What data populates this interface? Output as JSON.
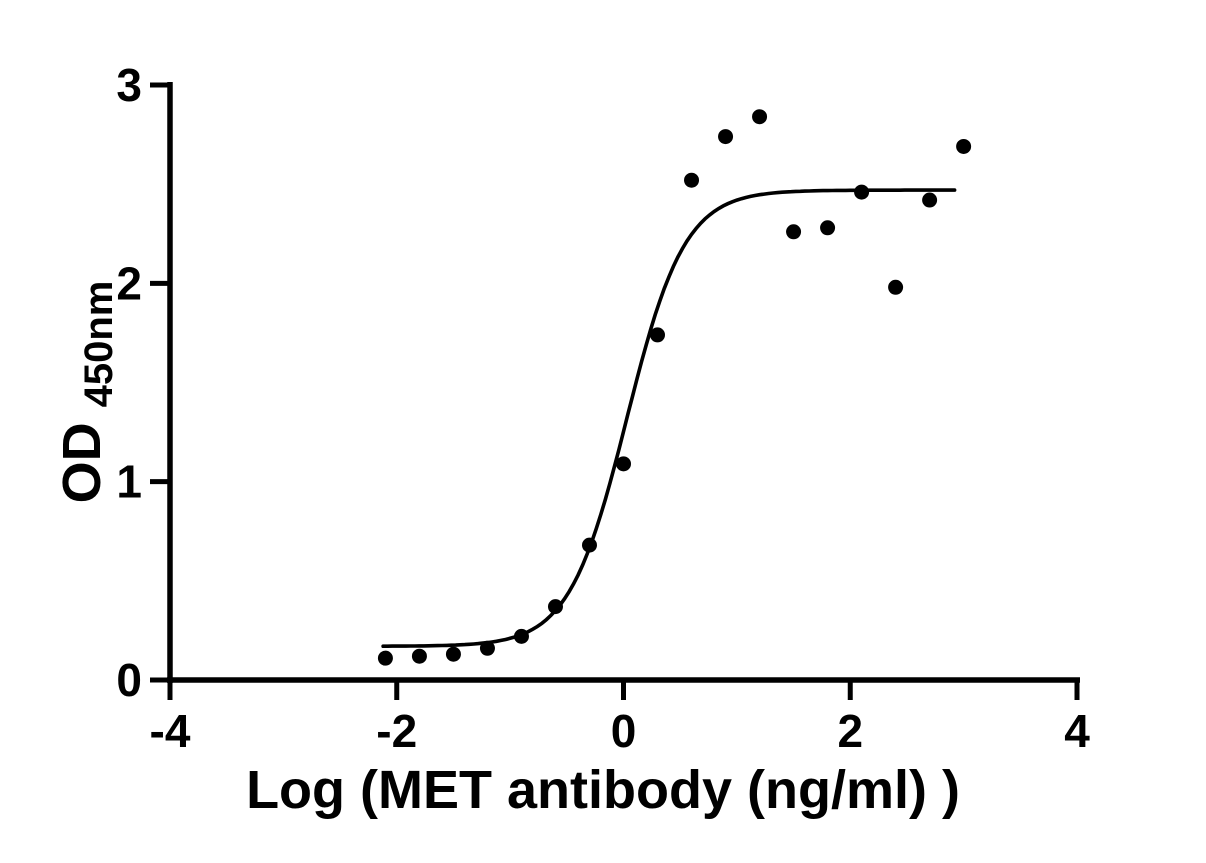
{
  "chart_data": {
    "type": "scatter",
    "title": "",
    "xlabel": "Log (MET antibody (ng/ml) )",
    "ylabel_main": "OD",
    "ylabel_sub": "450nm",
    "xlim": [
      -4,
      4
    ],
    "ylim": [
      0,
      3
    ],
    "x_ticks": [
      "-4",
      "-2",
      "0",
      "2",
      "4"
    ],
    "x_tick_values": [
      -4,
      -2,
      0,
      2,
      4
    ],
    "y_ticks": [
      "0",
      "1",
      "2",
      "3"
    ],
    "y_tick_values": [
      0,
      1,
      2,
      3
    ],
    "grid": false,
    "legend": null,
    "points": [
      {
        "x": -2.1,
        "y": 0.11
      },
      {
        "x": -1.8,
        "y": 0.12
      },
      {
        "x": -1.5,
        "y": 0.13
      },
      {
        "x": -1.2,
        "y": 0.16
      },
      {
        "x": -0.9,
        "y": 0.22
      },
      {
        "x": -0.6,
        "y": 0.37
      },
      {
        "x": -0.3,
        "y": 0.68
      },
      {
        "x": 0.0,
        "y": 1.09
      },
      {
        "x": 0.3,
        "y": 1.74
      },
      {
        "x": 0.6,
        "y": 2.52
      },
      {
        "x": 0.9,
        "y": 2.74
      },
      {
        "x": 1.2,
        "y": 2.84
      },
      {
        "x": 1.5,
        "y": 2.26
      },
      {
        "x": 1.8,
        "y": 2.28
      },
      {
        "x": 2.1,
        "y": 2.46
      },
      {
        "x": 2.4,
        "y": 1.98
      },
      {
        "x": 2.7,
        "y": 2.42
      },
      {
        "x": 3.0,
        "y": 2.69
      }
    ],
    "fit_curve": {
      "model": "4PL sigmoid",
      "bottom": 0.17,
      "top": 2.47,
      "log_ec50": 0.03,
      "hill_slope": 1.7,
      "x_start": -2.12,
      "x_end": 2.95
    },
    "marker": {
      "shape": "circle",
      "radius_px": 7.5,
      "color": "#000000"
    },
    "colors": {
      "foreground": "#000000",
      "background": "#ffffff"
    }
  }
}
